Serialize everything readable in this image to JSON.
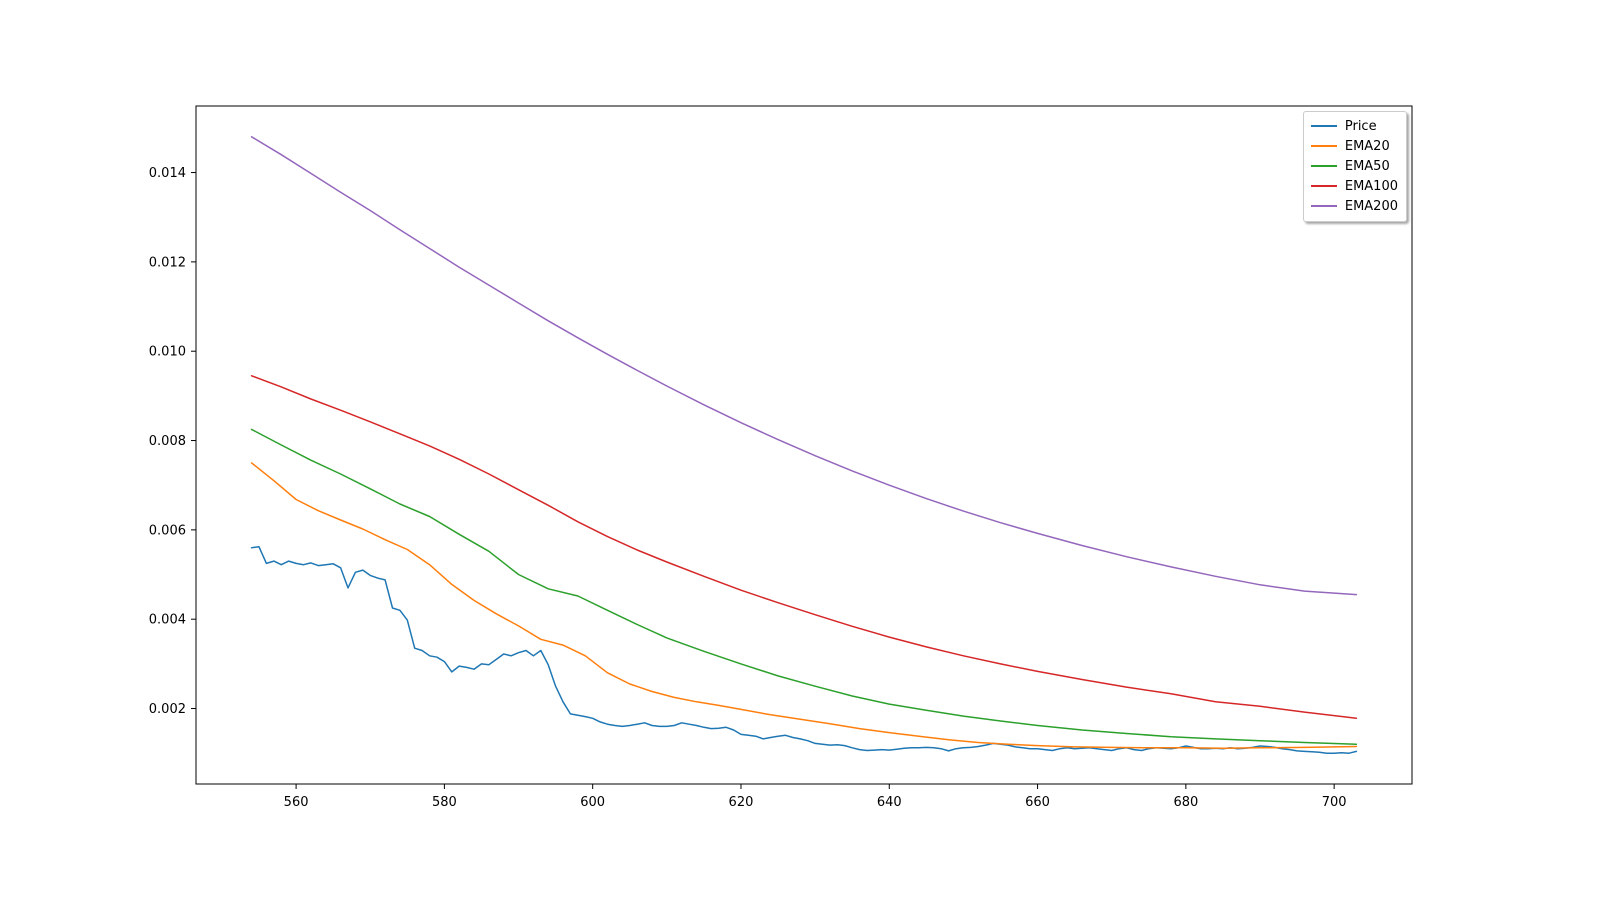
{
  "figure": {
    "background": "#ffffff",
    "axes_edge_color": "#000000",
    "tick_color": "#000000"
  },
  "chart_data": {
    "type": "line",
    "title": "",
    "xlabel": "",
    "ylabel": "",
    "grid": false,
    "legend_position": "upper right",
    "xlim": [
      546.5,
      710.5
    ],
    "ylim": [
      0.00031,
      0.01549
    ],
    "x_ticks": [
      560,
      580,
      600,
      620,
      640,
      660,
      680,
      700
    ],
    "y_ticks": [
      0.002,
      0.004,
      0.006,
      0.008,
      0.01,
      0.012,
      0.014
    ],
    "series": [
      {
        "name": "Price",
        "color": "#1f77b4",
        "x_start": 554,
        "x_step": 1,
        "values": [
          0.0056,
          0.00562,
          0.00525,
          0.0053,
          0.00522,
          0.0053,
          0.00525,
          0.00522,
          0.00526,
          0.0052,
          0.00522,
          0.00524,
          0.00515,
          0.0047,
          0.00505,
          0.0051,
          0.00498,
          0.00492,
          0.00488,
          0.00425,
          0.0042,
          0.00398,
          0.00335,
          0.0033,
          0.00318,
          0.00315,
          0.00305,
          0.00282,
          0.00295,
          0.00292,
          0.00288,
          0.003,
          0.00298,
          0.0031,
          0.00322,
          0.00318,
          0.00325,
          0.0033,
          0.00318,
          0.0033,
          0.00298,
          0.0025,
          0.00215,
          0.00188,
          0.00185,
          0.00182,
          0.00178,
          0.0017,
          0.00165,
          0.00162,
          0.0016,
          0.00162,
          0.00165,
          0.00168,
          0.00162,
          0.0016,
          0.0016,
          0.00162,
          0.00168,
          0.00165,
          0.00162,
          0.00158,
          0.00155,
          0.00156,
          0.00158,
          0.00152,
          0.00142,
          0.0014,
          0.00138,
          0.00132,
          0.00135,
          0.00138,
          0.0014,
          0.00135,
          0.00132,
          0.00128,
          0.00122,
          0.0012,
          0.00118,
          0.00119,
          0.00117,
          0.00112,
          0.00108,
          0.00106,
          0.00107,
          0.00108,
          0.00107,
          0.00109,
          0.00111,
          0.00112,
          0.00112,
          0.00113,
          0.00112,
          0.0011,
          0.00105,
          0.0011,
          0.00112,
          0.00113,
          0.00115,
          0.00118,
          0.00122,
          0.0012,
          0.00118,
          0.00114,
          0.00112,
          0.0011,
          0.0011,
          0.00108,
          0.00106,
          0.0011,
          0.00112,
          0.0011,
          0.00111,
          0.00112,
          0.0011,
          0.00108,
          0.00106,
          0.0011,
          0.00112,
          0.00108,
          0.00106,
          0.0011,
          0.00112,
          0.00111,
          0.0011,
          0.00112,
          0.00116,
          0.00113,
          0.0011,
          0.0011,
          0.00111,
          0.0011,
          0.00112,
          0.0011,
          0.00111,
          0.00113,
          0.00116,
          0.00115,
          0.00113,
          0.0011,
          0.00108,
          0.00105,
          0.00104,
          0.00103,
          0.00102,
          0.001,
          0.001,
          0.00101,
          0.001,
          0.00104
        ]
      },
      {
        "name": "EMA20",
        "color": "#ff7f0e",
        "x": [
          554,
          557,
          560,
          563,
          566,
          569,
          572,
          575,
          578,
          581,
          584,
          587,
          590,
          593,
          596,
          599,
          602,
          605,
          608,
          611,
          614,
          617,
          620,
          624,
          628,
          632,
          636,
          640,
          644,
          648,
          652,
          656,
          660,
          665,
          670,
          675,
          680,
          685,
          690,
          696,
          703
        ],
        "values": [
          0.0075,
          0.0071,
          0.00668,
          0.00643,
          0.00622,
          0.00602,
          0.00578,
          0.00556,
          0.00522,
          0.00478,
          0.00442,
          0.00412,
          0.00385,
          0.00355,
          0.00342,
          0.00318,
          0.0028,
          0.00255,
          0.00238,
          0.00225,
          0.00215,
          0.00207,
          0.00198,
          0.00186,
          0.00176,
          0.00166,
          0.00155,
          0.00146,
          0.00138,
          0.0013,
          0.00124,
          0.0012,
          0.00117,
          0.00114,
          0.00113,
          0.00112,
          0.00112,
          0.00111,
          0.00112,
          0.00113,
          0.00115
        ]
      },
      {
        "name": "EMA50",
        "color": "#2ca02c",
        "x": [
          554,
          558,
          562,
          566,
          570,
          574,
          578,
          582,
          586,
          590,
          594,
          598,
          602,
          606,
          610,
          615,
          620,
          625,
          630,
          635,
          640,
          645,
          650,
          655,
          660,
          666,
          672,
          678,
          684,
          690,
          696,
          703
        ],
        "values": [
          0.00825,
          0.0079,
          0.00756,
          0.00725,
          0.00692,
          0.00658,
          0.0063,
          0.0059,
          0.00552,
          0.005,
          0.00468,
          0.00452,
          0.0042,
          0.00388,
          0.00358,
          0.00328,
          0.003,
          0.00273,
          0.0025,
          0.00228,
          0.0021,
          0.00196,
          0.00183,
          0.00172,
          0.00162,
          0.00152,
          0.00144,
          0.00137,
          0.00132,
          0.00128,
          0.00124,
          0.0012
        ]
      },
      {
        "name": "EMA100",
        "color": "#d62728",
        "x": [
          554,
          558,
          562,
          566,
          570,
          574,
          578,
          582,
          586,
          590,
          594,
          598,
          602,
          606,
          610,
          615,
          620,
          625,
          630,
          635,
          640,
          645,
          650,
          655,
          660,
          666,
          672,
          678,
          684,
          690,
          696,
          703
        ],
        "values": [
          0.00945,
          0.0092,
          0.00893,
          0.00868,
          0.00842,
          0.00815,
          0.00788,
          0.00758,
          0.00725,
          0.0069,
          0.00655,
          0.00618,
          0.00585,
          0.00555,
          0.00528,
          0.00496,
          0.00465,
          0.00437,
          0.0041,
          0.00384,
          0.0036,
          0.00338,
          0.00318,
          0.003,
          0.00283,
          0.00265,
          0.00248,
          0.00233,
          0.00215,
          0.00205,
          0.00192,
          0.00178
        ]
      },
      {
        "name": "EMA200",
        "color": "#9467bd",
        "x": [
          554,
          558,
          562,
          566,
          570,
          574,
          578,
          582,
          586,
          590,
          594,
          598,
          602,
          606,
          610,
          615,
          620,
          625,
          630,
          635,
          640,
          645,
          650,
          655,
          660,
          666,
          672,
          678,
          684,
          690,
          696,
          703
        ],
        "values": [
          0.0148,
          0.0144,
          0.01398,
          0.01356,
          0.01315,
          0.01272,
          0.0123,
          0.01188,
          0.01148,
          0.01108,
          0.01068,
          0.0103,
          0.00993,
          0.00957,
          0.00922,
          0.0088,
          0.0084,
          0.00802,
          0.00766,
          0.00732,
          0.007,
          0.0067,
          0.00642,
          0.00616,
          0.00592,
          0.00565,
          0.0054,
          0.00517,
          0.00496,
          0.00477,
          0.00463,
          0.00455
        ]
      }
    ]
  }
}
